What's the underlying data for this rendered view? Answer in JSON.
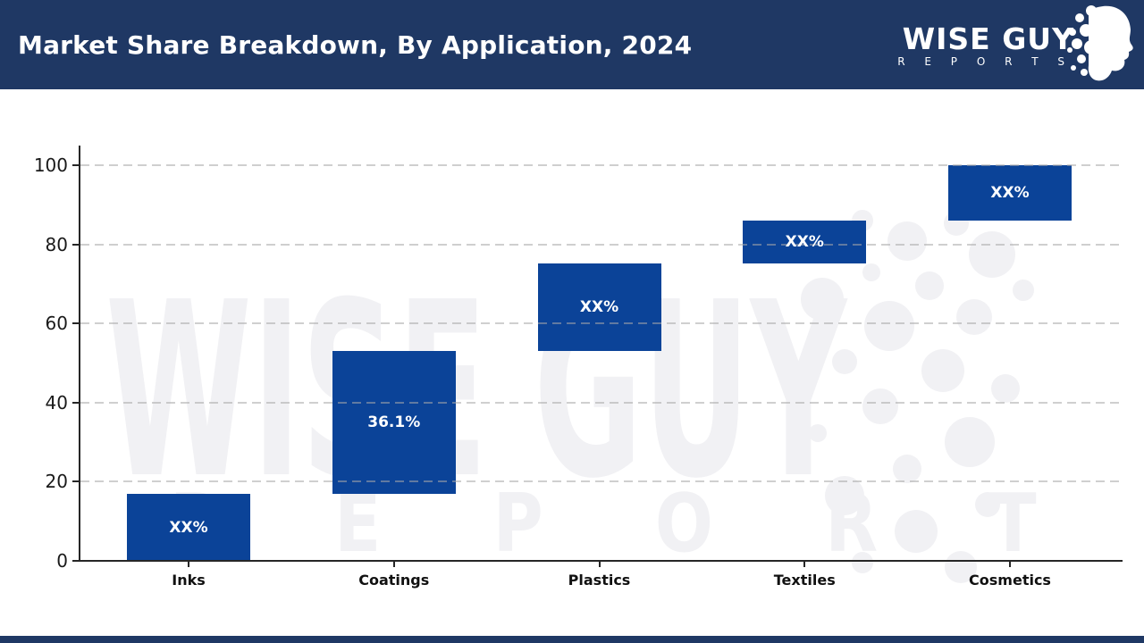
{
  "header": {
    "title": "Market Share Breakdown, By Application, 2024",
    "logo": {
      "line1": "WISE GUY",
      "line2": "R E P O R T S"
    }
  },
  "watermark": {
    "line1": "WISE GUY",
    "line2": "R E P O R T S"
  },
  "colors": {
    "header_bg": "#1f3864",
    "footer_bg": "#1f3864",
    "bar": "#0b4398",
    "gridline": "#c9c9c9",
    "watermark": "#f1f1f4"
  },
  "chart_data": {
    "type": "bar",
    "subtype": "waterfall",
    "title": "Market Share Breakdown, By Application, 2024",
    "categories": [
      "Inks",
      "Coatings",
      "Plastics",
      "Textiles",
      "Cosmetics"
    ],
    "segments": [
      {
        "category": "Inks",
        "start": 0,
        "end": 16.9,
        "value": 16.9,
        "label": "XX%"
      },
      {
        "category": "Coatings",
        "start": 16.9,
        "end": 53.0,
        "value": 36.1,
        "label": "36.1%"
      },
      {
        "category": "Plastics",
        "start": 53.0,
        "end": 75.1,
        "value": 22.1,
        "label": "XX%"
      },
      {
        "category": "Textiles",
        "start": 75.1,
        "end": 85.9,
        "value": 10.8,
        "label": "XX%"
      },
      {
        "category": "Cosmetics",
        "start": 85.9,
        "end": 100,
        "value": 14.1,
        "label": "XX%"
      }
    ],
    "y_ticks": [
      0,
      20,
      40,
      60,
      80,
      100
    ],
    "ylim": [
      0,
      105
    ],
    "xlabel": "",
    "ylabel": "",
    "grid": "horizontal dashed, drawn above bars",
    "legend": "none"
  }
}
